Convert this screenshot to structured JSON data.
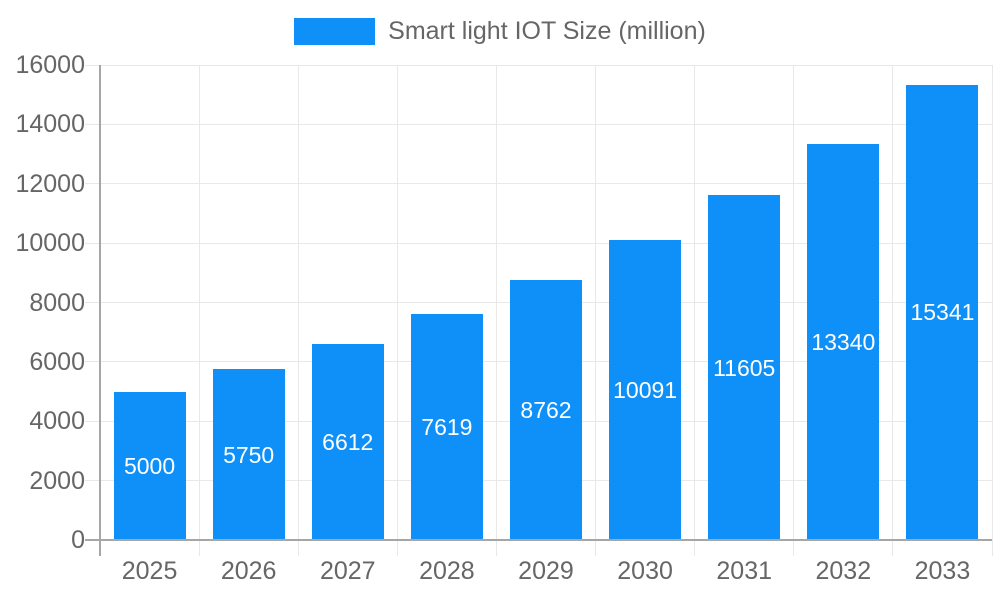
{
  "legend": {
    "label": "Smart light IOT Size (million)"
  },
  "colors": {
    "bar": "#0e90f8",
    "axis": "#a6a6a6",
    "grid": "#e8e8e8",
    "text": "#666666",
    "value_label": "#ffffff",
    "background": "#ffffff"
  },
  "chart_data": {
    "type": "bar",
    "title": "Smart light IOT Size (million)",
    "legend_position": "top",
    "grid": true,
    "categories": [
      "2025",
      "2026",
      "2027",
      "2028",
      "2029",
      "2030",
      "2031",
      "2032",
      "2033"
    ],
    "series": [
      {
        "name": "Smart light IOT Size (million)",
        "color": "#0e90f8",
        "values": [
          5000,
          5750,
          6612,
          7619,
          8762,
          10091,
          11605,
          13340,
          15341
        ]
      }
    ],
    "value_labels_shown": true,
    "xlabel": "",
    "ylabel": "",
    "ylim": [
      0,
      16000
    ],
    "yticks": [
      0,
      2000,
      4000,
      6000,
      8000,
      10000,
      12000,
      14000,
      16000
    ]
  }
}
